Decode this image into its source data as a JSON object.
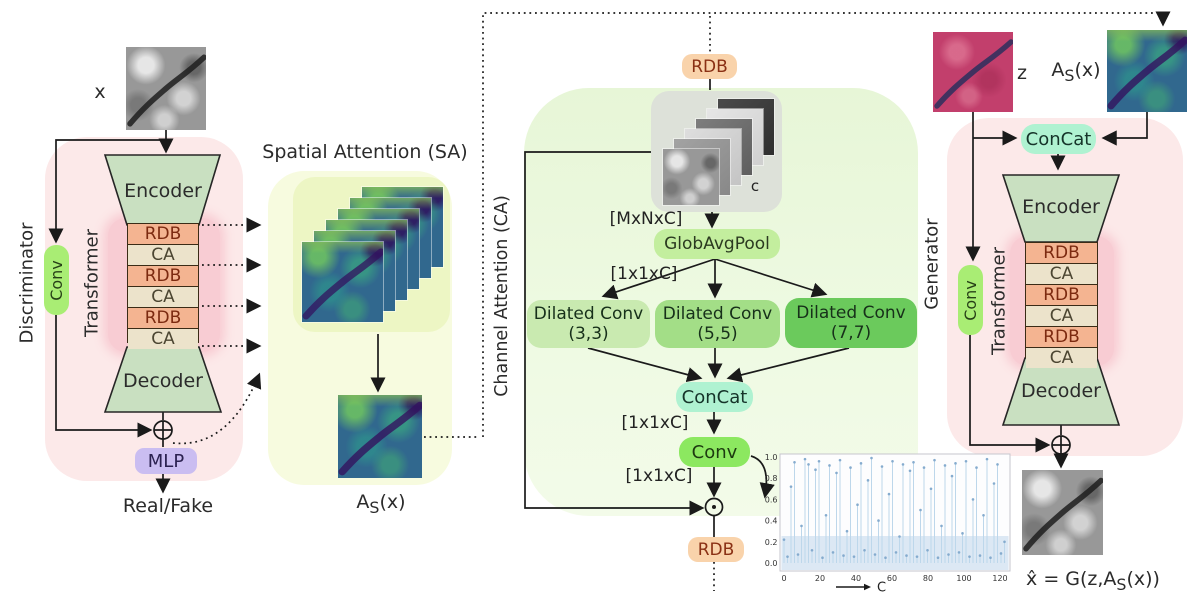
{
  "discriminator": {
    "label": "Discriminator",
    "input_label": "x",
    "conv_label": "Conv",
    "transformer_label": "Transformer",
    "encoder_label": "Encoder",
    "decoder_label": "Decoder",
    "stack": [
      "RDB",
      "CA",
      "RDB",
      "CA",
      "RDB",
      "CA"
    ],
    "mlp_label": "MLP",
    "output_label": "Real/Fake"
  },
  "spatial_attention": {
    "title": "Spatial Attention (SA)",
    "output_label": {
      "pre": "A",
      "sub": "S",
      "post": "(x)"
    }
  },
  "channel_attention": {
    "label": "Channel Attention (CA)",
    "rdb_in_label": "RDB",
    "rdb_out_label": "RDB",
    "input_dims": "[MxNxC]",
    "channel_axis_label": "c",
    "pool_label": "GlobAvgPool",
    "pooled_dims": "[1x1xC]",
    "dilated_convs": [
      {
        "line1": "Dilated Conv",
        "line2": "(3,3)"
      },
      {
        "line1": "Dilated Conv",
        "line2": "(5,5)"
      },
      {
        "line1": "Dilated Conv",
        "line2": "(7,7)"
      }
    ],
    "concat_label": "ConCat",
    "concat_dims": "[1x1xC]",
    "conv_label": "Conv",
    "conv_dims": "[1x1xC]"
  },
  "chart_data": {
    "type": "stem",
    "title": "",
    "xlabel": "C",
    "ylabel": "",
    "xlim": [
      0,
      128
    ],
    "ylim": [
      0.0,
      1.0
    ],
    "xticks": [
      0,
      20,
      40,
      60,
      80,
      100,
      120
    ],
    "yticks": [
      1.0,
      0.8,
      0.6,
      0.4,
      0.2,
      0.0
    ],
    "values": [
      0.22,
      0.06,
      0.72,
      0.95,
      0.08,
      0.35,
      0.98,
      0.93,
      0.12,
      0.88,
      0.96,
      0.05,
      0.45,
      0.92,
      0.1,
      0.85,
      0.97,
      0.07,
      0.3,
      0.9,
      0.06,
      0.55,
      0.94,
      0.12,
      0.78,
      0.99,
      0.08,
      0.4,
      0.91,
      0.05,
      0.65,
      0.96,
      0.1,
      0.25,
      0.93,
      0.07,
      0.87,
      0.95,
      0.06,
      0.5,
      0.9,
      0.12,
      0.7,
      0.97,
      0.05,
      0.35,
      0.92,
      0.08,
      0.82,
      0.94,
      0.1,
      0.28,
      0.96,
      0.06,
      0.6,
      0.9,
      0.07,
      0.45,
      0.98,
      0.05,
      0.75,
      0.93,
      0.09,
      0.2
    ]
  },
  "generator": {
    "label": "Generator",
    "noise_label": "z",
    "attention_label": {
      "pre": "A",
      "sub": "S",
      "post": "(x)"
    },
    "concat_label": "ConCat",
    "conv_label": "Conv",
    "transformer_label": "Transformer",
    "encoder_label": "Encoder",
    "decoder_label": "Decoder",
    "stack": [
      "RDB",
      "CA",
      "RDB",
      "CA",
      "RDB",
      "CA"
    ],
    "output_formula": {
      "pre": "x̂ = G(z,A",
      "sub": "S",
      "post": "(x))"
    }
  },
  "colors": {
    "discriminator_bg": "#fce9e9",
    "stack_highlight": "#f8ccd3",
    "sa_bg": "#f7fbdf",
    "sa_inner_bg": "#edf6c4",
    "encoder_fill": "#c9e0c1",
    "rdb_fill": "#f4b491",
    "ca_row_fill": "#ece3cb",
    "conv_fill": "#a9ed74",
    "mlp_fill": "#cabdf1",
    "rdb_pill_fill": "#f9d3ab",
    "pool_fill": "#c3ee9e",
    "dilated1_fill": "#c9eab0",
    "dilated2_fill": "#a3de87",
    "dilated3_fill": "#6bca5c",
    "concat_fill": "#aff2d1",
    "conv_ca_fill": "#8ce860",
    "stem_color": "#bdd7eb"
  }
}
